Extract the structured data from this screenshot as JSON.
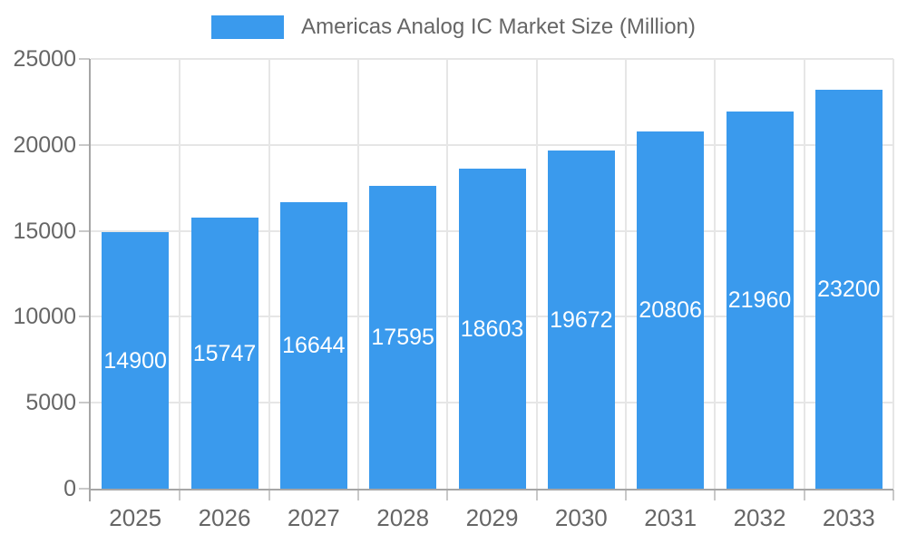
{
  "chart_data": {
    "type": "bar",
    "title": "Americas Analog IC Market Size (Million)",
    "legend_entries": [
      "Americas Analog IC Market Size (Million)"
    ],
    "legend_position": "top-center",
    "categories": [
      "2025",
      "2026",
      "2027",
      "2028",
      "2029",
      "2030",
      "2031",
      "2032",
      "2033"
    ],
    "series": [
      {
        "name": "Americas Analog IC Market Size (Million)",
        "values": [
          14900,
          15747,
          16644,
          17595,
          18603,
          19672,
          20806,
          21960,
          23200
        ]
      }
    ],
    "value_labels": [
      "14900",
      "15747",
      "16644",
      "17595",
      "18603",
      "19672",
      "20806",
      "21960",
      "23200"
    ],
    "value_label_position": "inside-middle",
    "xlabel": "",
    "ylabel": "",
    "ylim": [
      0,
      25000
    ],
    "yticks": [
      0,
      5000,
      10000,
      15000,
      20000,
      25000
    ],
    "grid": true,
    "colors": {
      "bar": "#3A9AED",
      "value_label": "#FFFFFF",
      "axis_text": "#666666",
      "legend_text": "#666666",
      "gridline": "#E6E6E6",
      "axis_line": "#A6A6A6",
      "tick": "#C9C9C9",
      "background": "#FFFFFF"
    }
  }
}
